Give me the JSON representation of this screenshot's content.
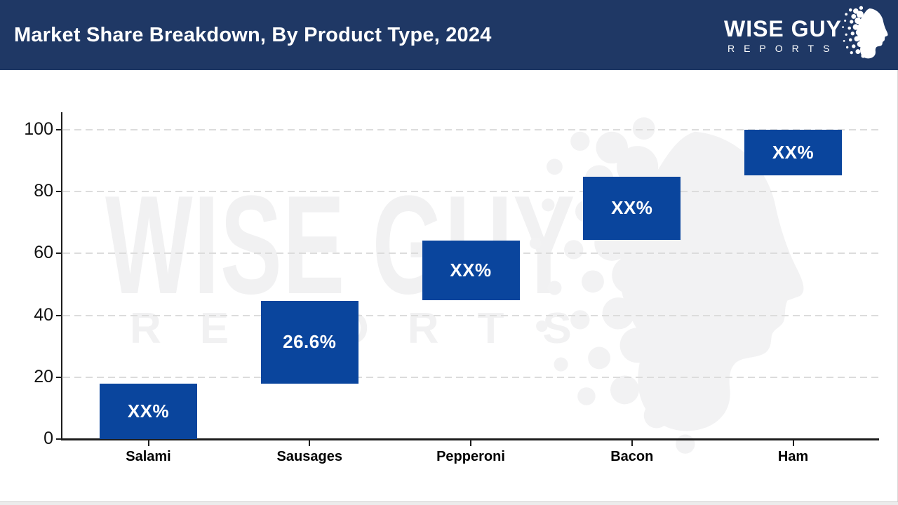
{
  "header": {
    "title": "Market Share Breakdown, By Product Type, 2024",
    "logo": {
      "wordmark": "WISE GUY",
      "subtext": "REPORTS"
    }
  },
  "watermark": {
    "wordmark": "WISE GUY",
    "subtext": "REPORTS"
  },
  "colors": {
    "header_bg": "#1f3865",
    "bar_fill": "#0a459d",
    "bar_label": "#ffffff",
    "grid_line": "#dcdcdc",
    "axis_line": "#1c1c1c",
    "watermark": "#f1f1f2"
  },
  "chart_data": {
    "type": "bar",
    "subtype": "waterfall-floating-bars",
    "title": "Market Share Breakdown, By Product Type, 2024",
    "categories": [
      "Salami",
      "Sausages",
      "Pepperoni",
      "Bacon",
      "Ham"
    ],
    "segments": [
      {
        "category": "Salami",
        "start": 0,
        "end": 18,
        "label": "XX%"
      },
      {
        "category": "Sausages",
        "start": 18,
        "end": 44.6,
        "label": "26.6%"
      },
      {
        "category": "Pepperoni",
        "start": 44.8,
        "end": 64.2,
        "label": "XX%"
      },
      {
        "category": "Bacon",
        "start": 64.4,
        "end": 84.9,
        "label": "XX%"
      },
      {
        "category": "Ham",
        "start": 85.3,
        "end": 100,
        "label": "XX%"
      }
    ],
    "yticks": [
      0,
      20,
      40,
      60,
      80,
      100
    ],
    "ylim": [
      0,
      100
    ],
    "xlabel": "",
    "ylabel": "",
    "grid": "horizontal-dashed",
    "legend": "none"
  }
}
